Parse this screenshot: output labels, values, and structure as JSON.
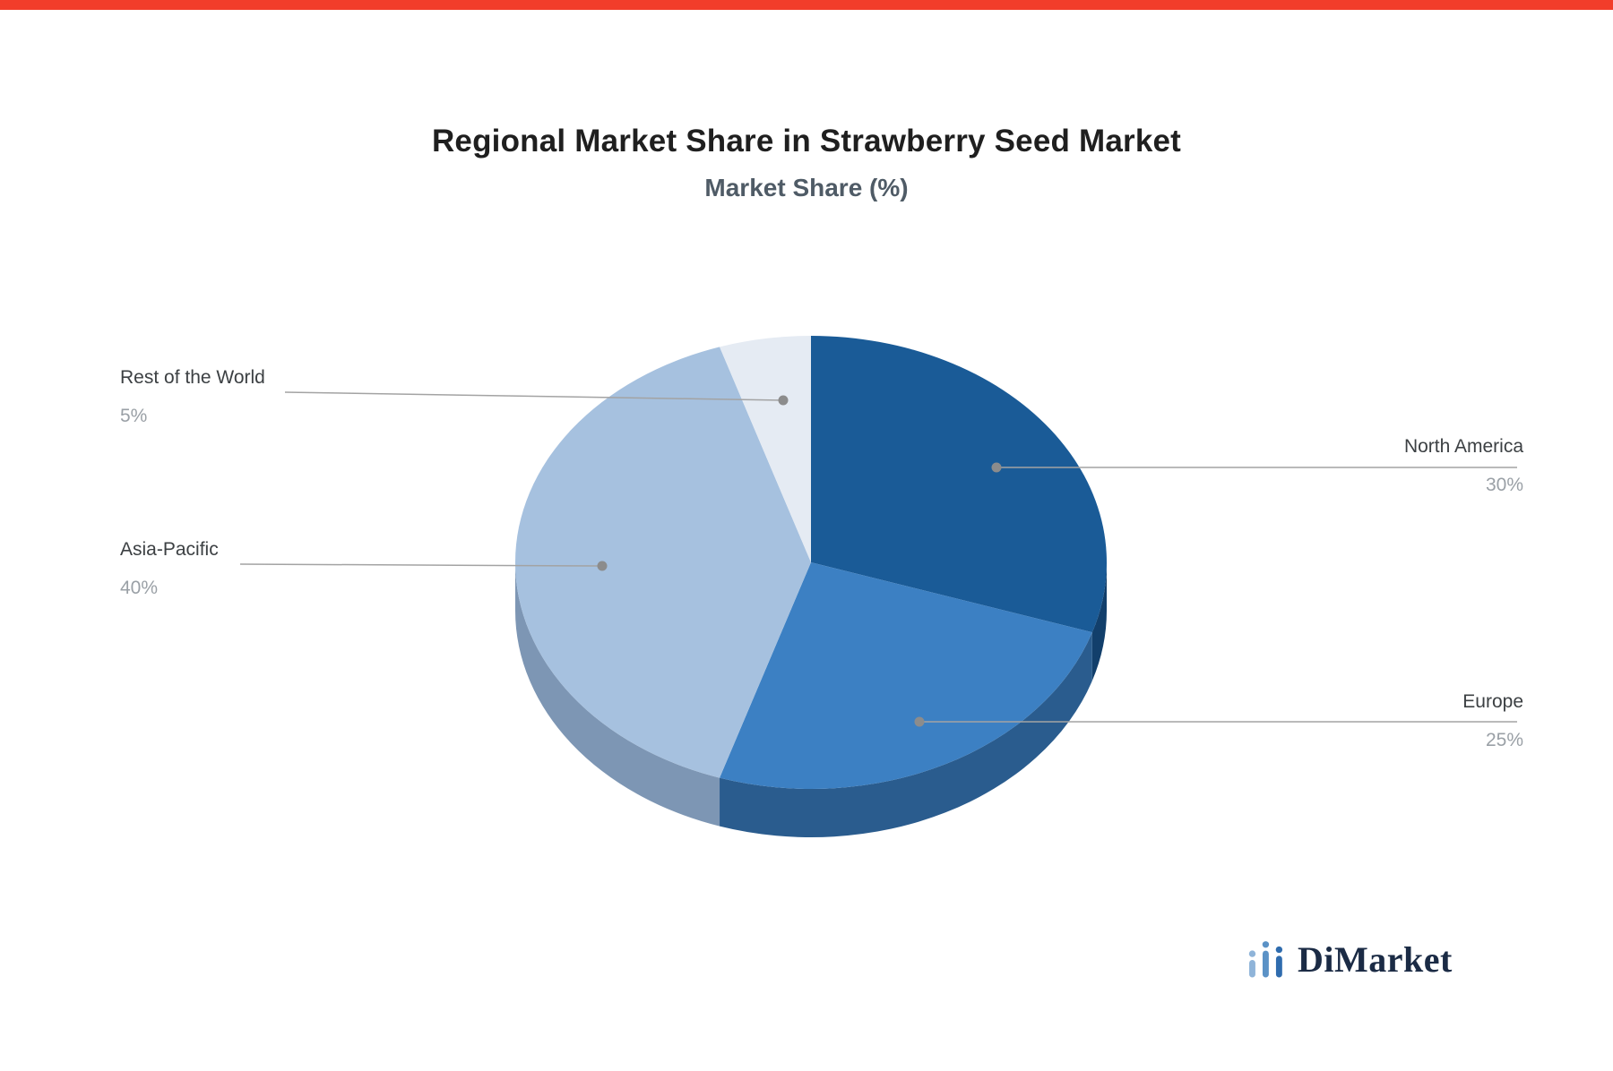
{
  "page": {
    "top_bar_color": "#f23d2a",
    "background_color": "#ffffff"
  },
  "chart_data": {
    "type": "pie",
    "style": "3d",
    "title": "Regional Market Share in Strawberry Seed Market",
    "subtitle": "Market Share (%)",
    "unit": "%",
    "start_angle_deg": -90,
    "direction": "clockwise",
    "legend": "none",
    "labels_style": "outside-leader-lines",
    "slices": [
      {
        "label": "North America",
        "value": 30,
        "value_label": "30%",
        "color": "#1a5b97",
        "side_color": "#123f6b"
      },
      {
        "label": "Europe",
        "value": 25,
        "value_label": "25%",
        "color": "#3c80c3",
        "side_color": "#2a5c8e"
      },
      {
        "label": "Asia-Pacific",
        "value": 40,
        "value_label": "40%",
        "color": "#a6c1df",
        "side_color": "#7d96b4"
      },
      {
        "label": "Rest of the World",
        "value": 5,
        "value_label": "5%",
        "color": "#e5ebf3",
        "side_color": "#b8c2cf"
      }
    ],
    "leader_line_color": "#a3a3a3",
    "leader_dot_color": "#8c8c8c",
    "label_text_color": "#3c4043",
    "value_text_color": "#9aa0a6"
  },
  "branding": {
    "name": "DiMarket",
    "logo_icon": "bar-chart-icon",
    "text_color": "#1b2b45",
    "icon_colors": [
      "#8fb4d9",
      "#5b92c6",
      "#2f6cae"
    ]
  }
}
